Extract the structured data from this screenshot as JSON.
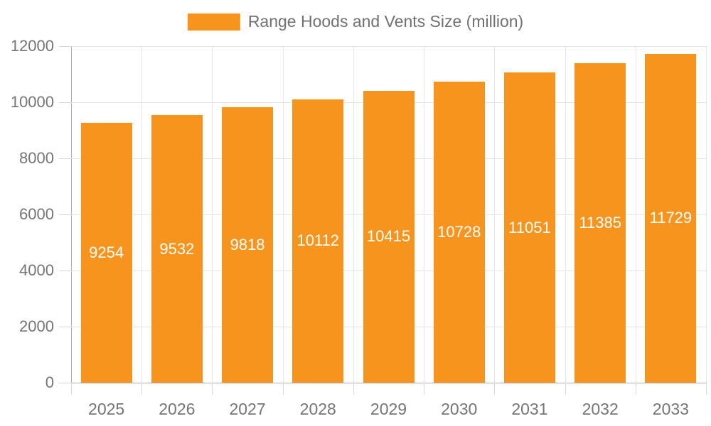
{
  "legend": {
    "label": "Range Hoods and Vents Size (million)"
  },
  "colors": {
    "bar": "#F7941E",
    "value_label": "#FFFFFF",
    "axis_line": "#B0B0B0",
    "gridline": "#E4E4E4",
    "tick": "#D8D8D8",
    "axis_text": "#757575",
    "legend_text": "#717171",
    "background": "#FFFFFF"
  },
  "chart_data": {
    "type": "bar",
    "title": "",
    "series_name": "Range Hoods and Vents Size (million)",
    "categories": [
      "2025",
      "2026",
      "2027",
      "2028",
      "2029",
      "2030",
      "2031",
      "2032",
      "2033"
    ],
    "values": [
      9254,
      9532,
      9818,
      10112,
      10415,
      10728,
      11051,
      11385,
      11729
    ],
    "xlabel": "",
    "ylabel": "",
    "ylim": [
      0,
      12000
    ],
    "yticks": [
      0,
      2000,
      4000,
      6000,
      8000,
      10000,
      12000
    ],
    "grid": true,
    "grid_vertical": true,
    "legend_position": "top-center",
    "bar_color": "#F7941E",
    "value_labels": "inside-center-white"
  }
}
